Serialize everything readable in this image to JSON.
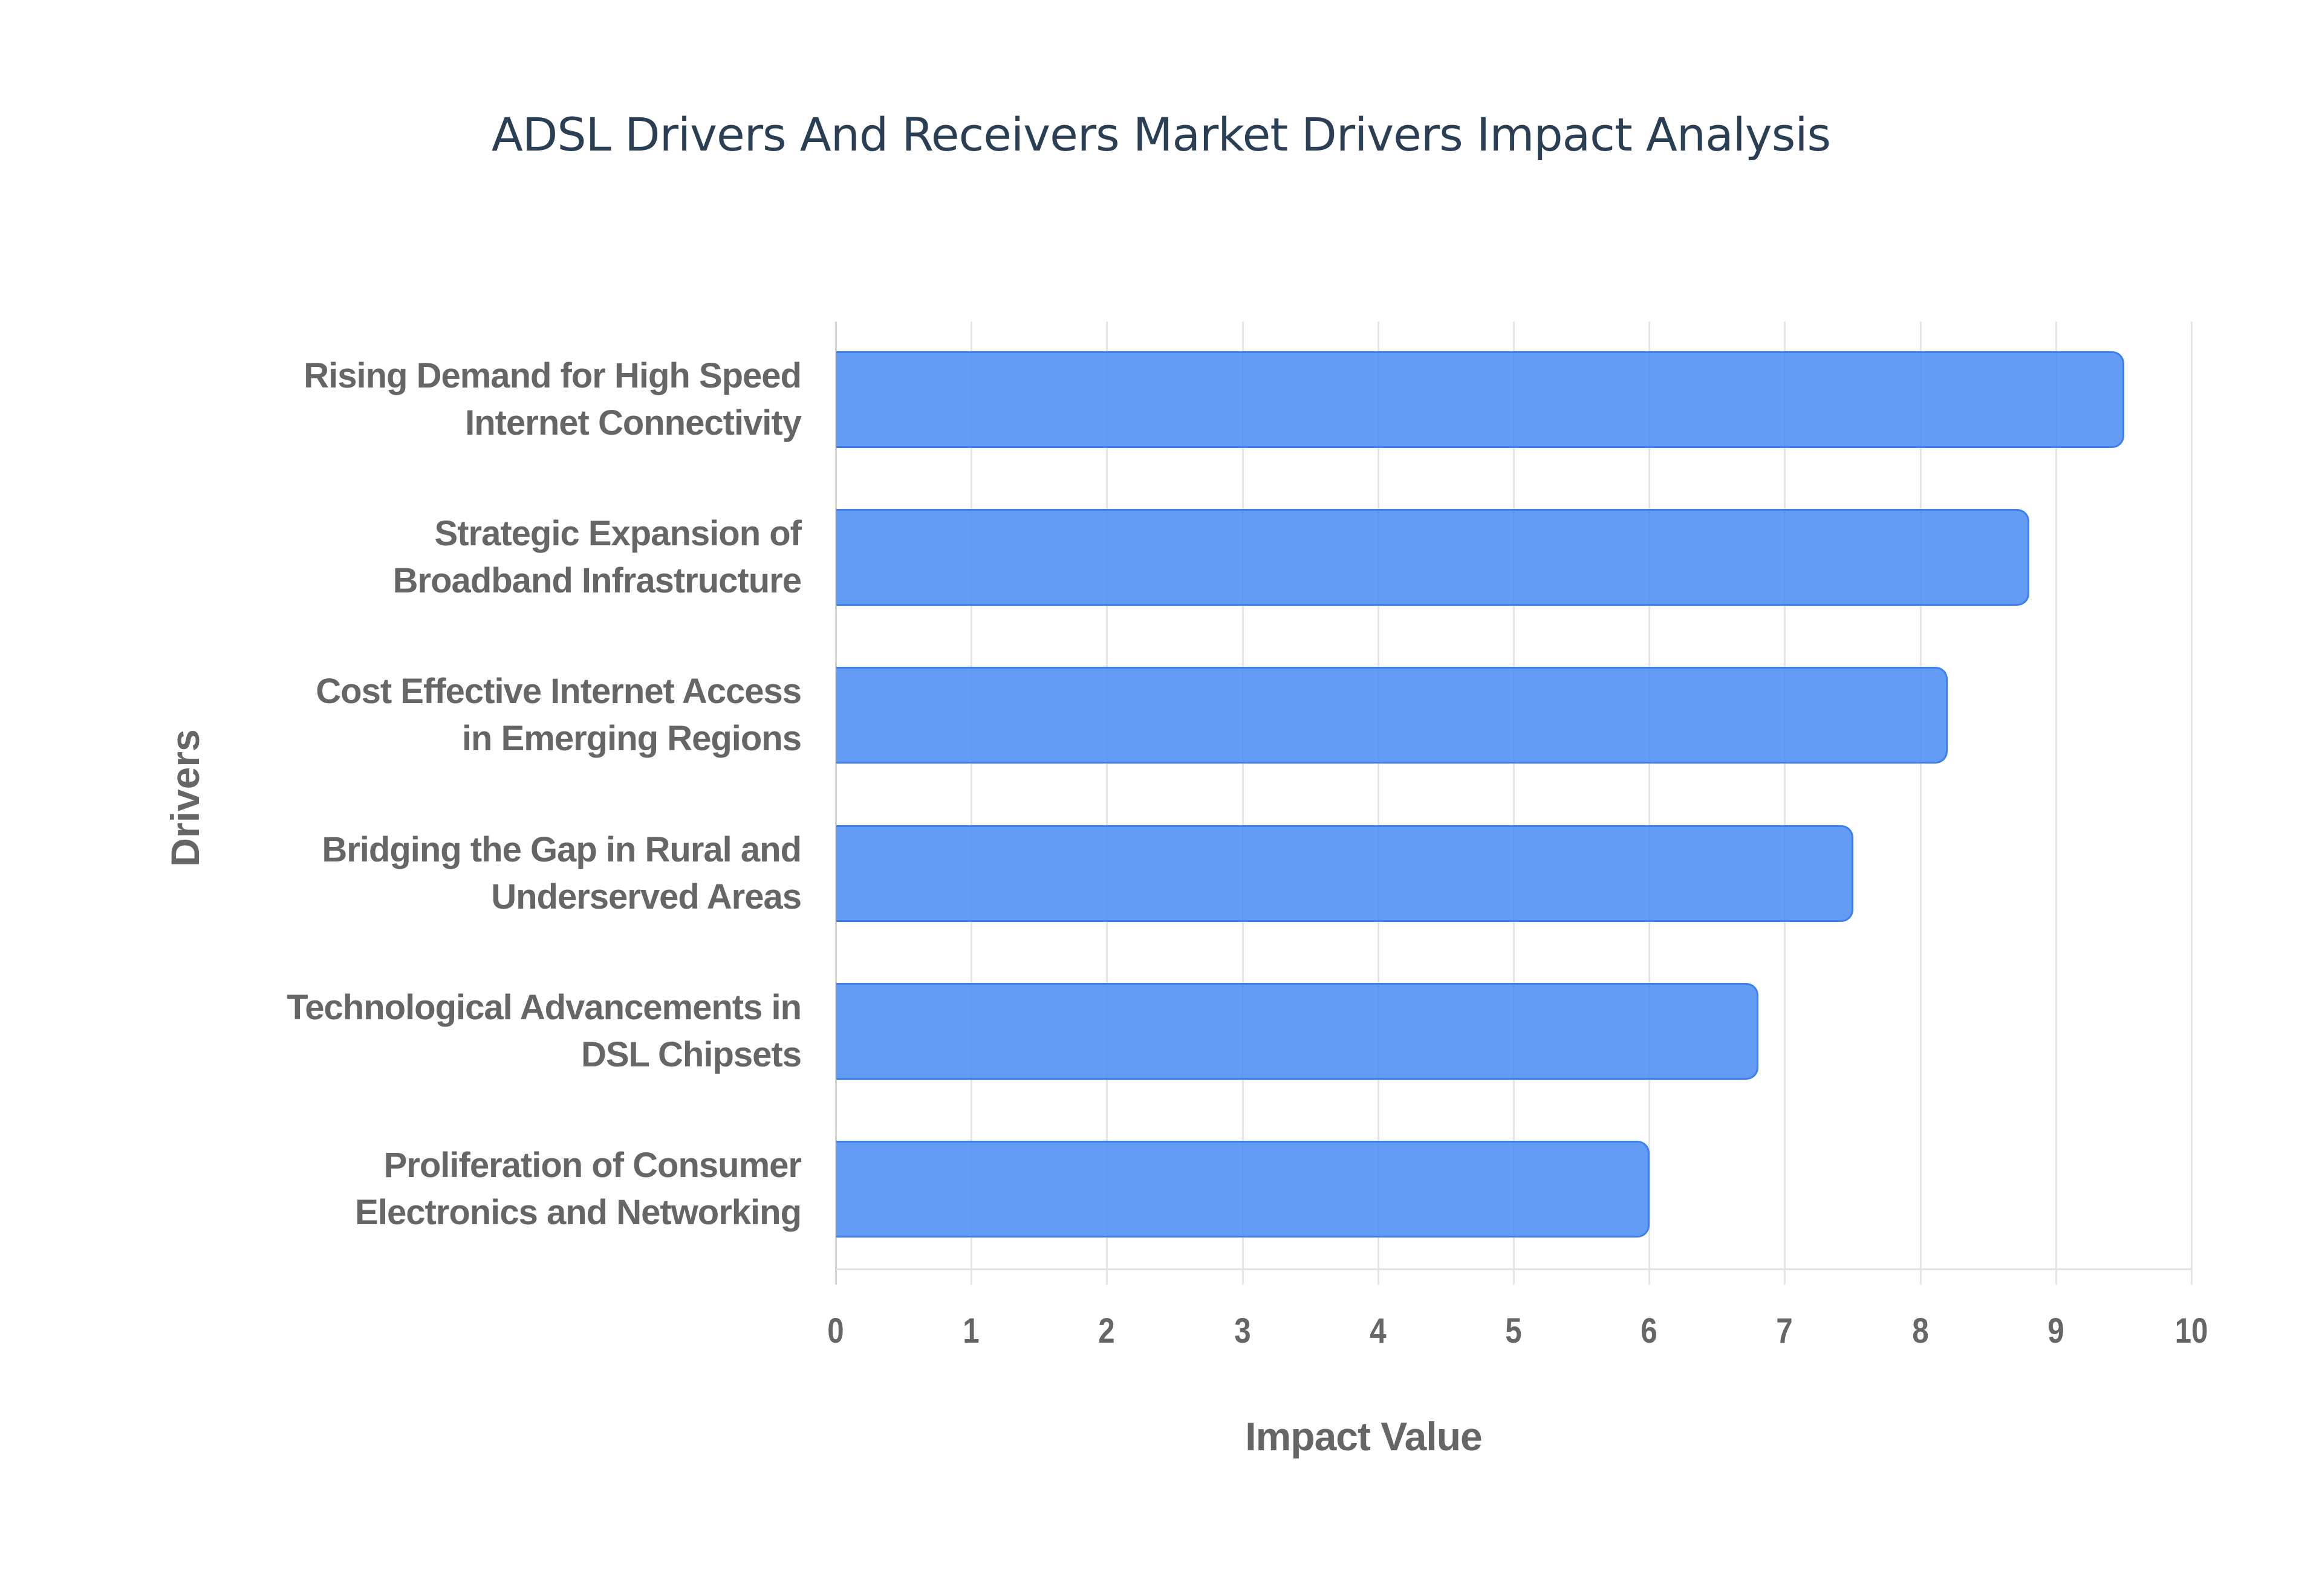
{
  "chart_data": {
    "type": "bar",
    "orientation": "horizontal",
    "title": "ADSL Drivers And Receivers Market Drivers Impact Analysis",
    "xlabel": "Impact Value",
    "ylabel": "Drivers",
    "xlim": [
      0,
      10
    ],
    "xticks": [
      "0",
      "1",
      "2",
      "3",
      "4",
      "5",
      "6",
      "7",
      "8",
      "9",
      "10"
    ],
    "grid": true,
    "legend": null,
    "bar_color": "#6399f4",
    "bar_border_color": "#3b7ff0",
    "categories": [
      [
        "Rising Demand for High Speed",
        "Internet Connectivity"
      ],
      [
        "Strategic Expansion of",
        "Broadband Infrastructure"
      ],
      [
        "Cost Effective Internet Access",
        "in Emerging Regions"
      ],
      [
        "Bridging the Gap in Rural and",
        "Underserved Areas"
      ],
      [
        "Technological Advancements in",
        "DSL Chipsets"
      ],
      [
        "Proliferation of Consumer",
        "Electronics and Networking"
      ]
    ],
    "values": [
      9.5,
      8.8,
      8.2,
      7.5,
      6.8,
      6.0
    ]
  }
}
